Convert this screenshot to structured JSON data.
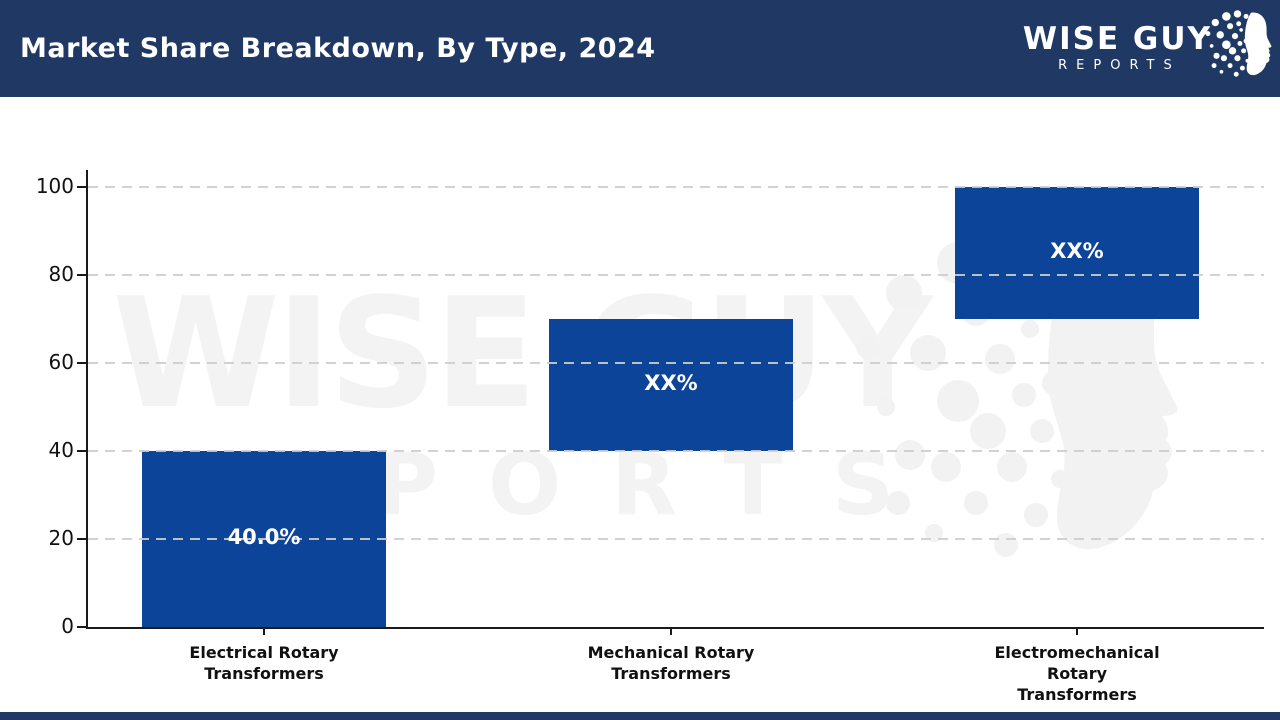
{
  "header": {
    "title": "Market Share Breakdown, By Type, 2024",
    "logo": {
      "line1": "WISE GUY",
      "line2": "REPORTS"
    }
  },
  "watermark": {
    "line1": "WISE GUY",
    "line2": "REPORTS"
  },
  "chart_data": {
    "type": "bar",
    "subtype": "waterfall",
    "title": "Market Share Breakdown, By Type, 2024",
    "categories": [
      "Electrical Rotary\nTransformers",
      "Mechanical Rotary\nTransformers",
      "Electromechanical\nRotary\nTransformers"
    ],
    "series": [
      {
        "name": "Electrical Rotary Transformers",
        "start": 0,
        "end": 40,
        "label": "40.0%"
      },
      {
        "name": "Mechanical Rotary Transformers",
        "start": 40,
        "end": 70,
        "label": "XX%"
      },
      {
        "name": "Electromechanical Rotary Transformers",
        "start": 70,
        "end": 100,
        "label": "XX%"
      }
    ],
    "xlabel": "",
    "ylabel": "",
    "ylim": [
      0,
      100
    ],
    "yticks": [
      0,
      20,
      40,
      60,
      80,
      100
    ],
    "grid": "horizontal-dashed",
    "legend": "none",
    "bar_color": "#0b4499",
    "bar_label_color": "#ffffff",
    "header_color": "#203864",
    "watermark_color": "#f3f3f3"
  }
}
